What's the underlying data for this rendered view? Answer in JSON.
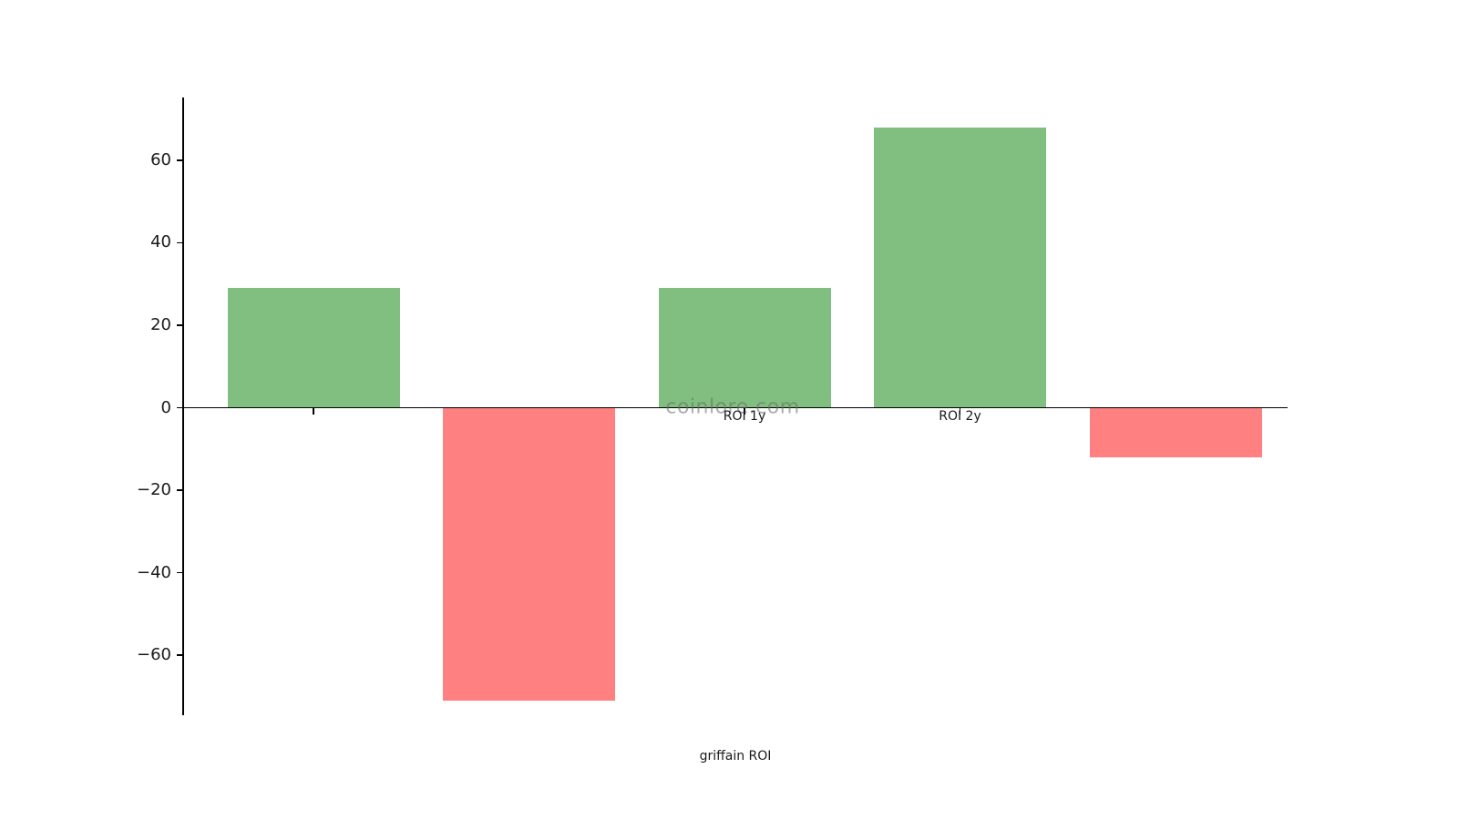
{
  "watermark": {
    "text": "coinlore.com"
  },
  "chart_data": {
    "type": "bar",
    "title": "",
    "xlabel": "griffain ROI",
    "ylabel": "",
    "categories": [
      "",
      "",
      "ROI 1y",
      "ROI 2y",
      ""
    ],
    "values": [
      29,
      -71,
      29,
      68,
      -12
    ],
    "bar_colors": [
      "#80bf80",
      "#ff8080",
      "#80bf80",
      "#80bf80",
      "#ff8080"
    ],
    "colors": {
      "positive": "#80bf80",
      "negative": "#ff8080"
    },
    "yticks": [
      60,
      40,
      20,
      0,
      -20,
      -40,
      -60
    ],
    "ylim": [
      -75,
      75
    ],
    "grid": false,
    "legend": "none",
    "baseline": 0,
    "axis_color": "#000000",
    "background": "#ffffff"
  }
}
